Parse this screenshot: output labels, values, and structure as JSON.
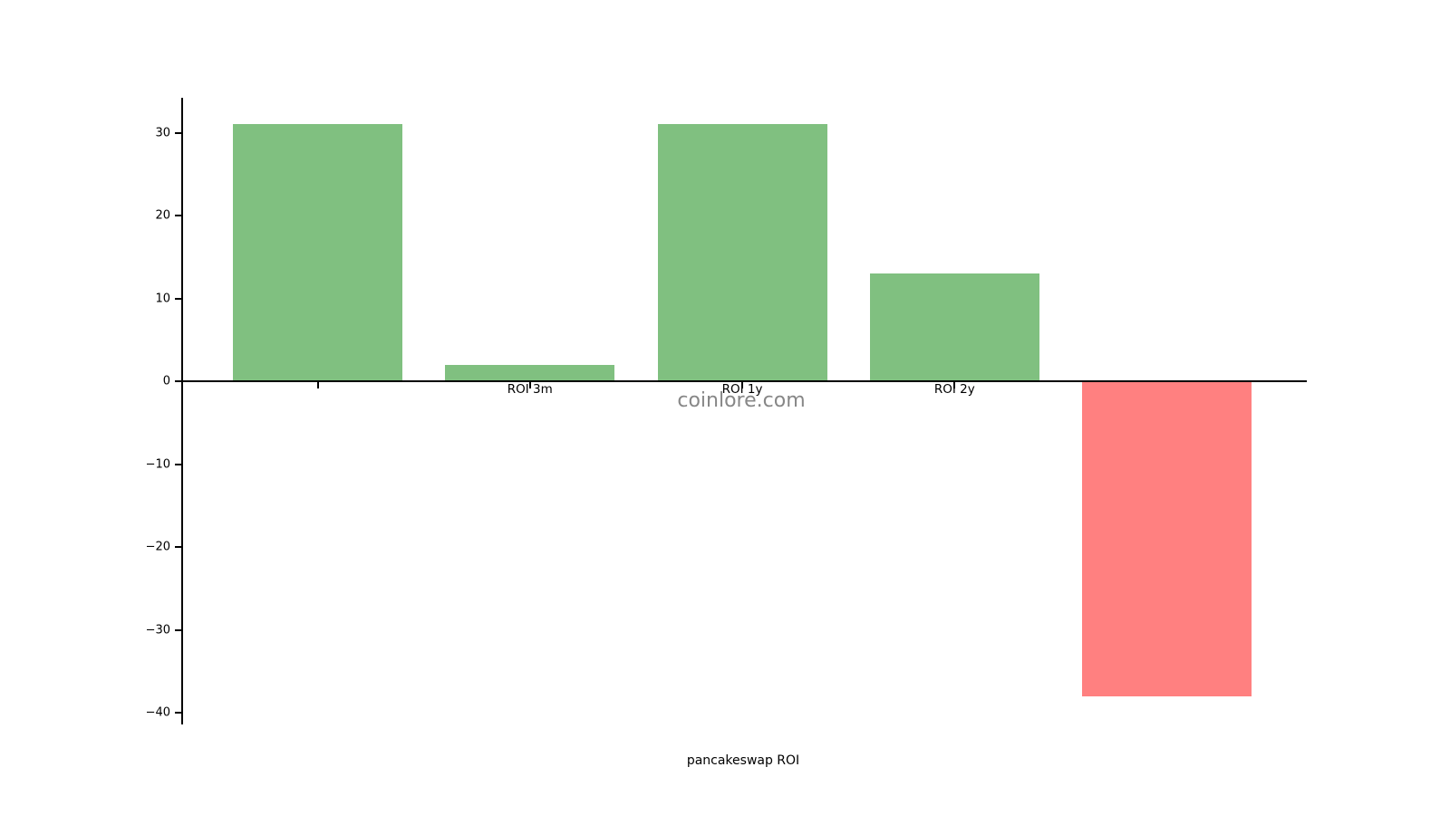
{
  "chart_data": {
    "type": "bar",
    "title": "",
    "xlabel": "pancakeswap ROI",
    "ylabel": "",
    "categories": [
      "",
      "ROI 3m",
      "ROI 1y",
      "ROI 2y",
      ""
    ],
    "values": [
      31,
      2,
      31,
      13,
      -38
    ],
    "bar_colors": [
      "#80c080",
      "#80c080",
      "#80c080",
      "#80c080",
      "#ff8080"
    ],
    "positive_color": "#80c080",
    "negative_color": "#ff8080",
    "yticks": [
      30,
      20,
      10,
      0,
      -10,
      -20,
      -30,
      -40
    ],
    "ytick_labels": [
      "30",
      "20",
      "10",
      "0",
      "−10",
      "−20",
      "−30",
      "−40"
    ],
    "ylim": [
      -41.5,
      34.3
    ],
    "grid": false,
    "legend": null,
    "axis_color": "#000000",
    "watermark": "coinlore.com",
    "watermark_color": "#878787"
  }
}
